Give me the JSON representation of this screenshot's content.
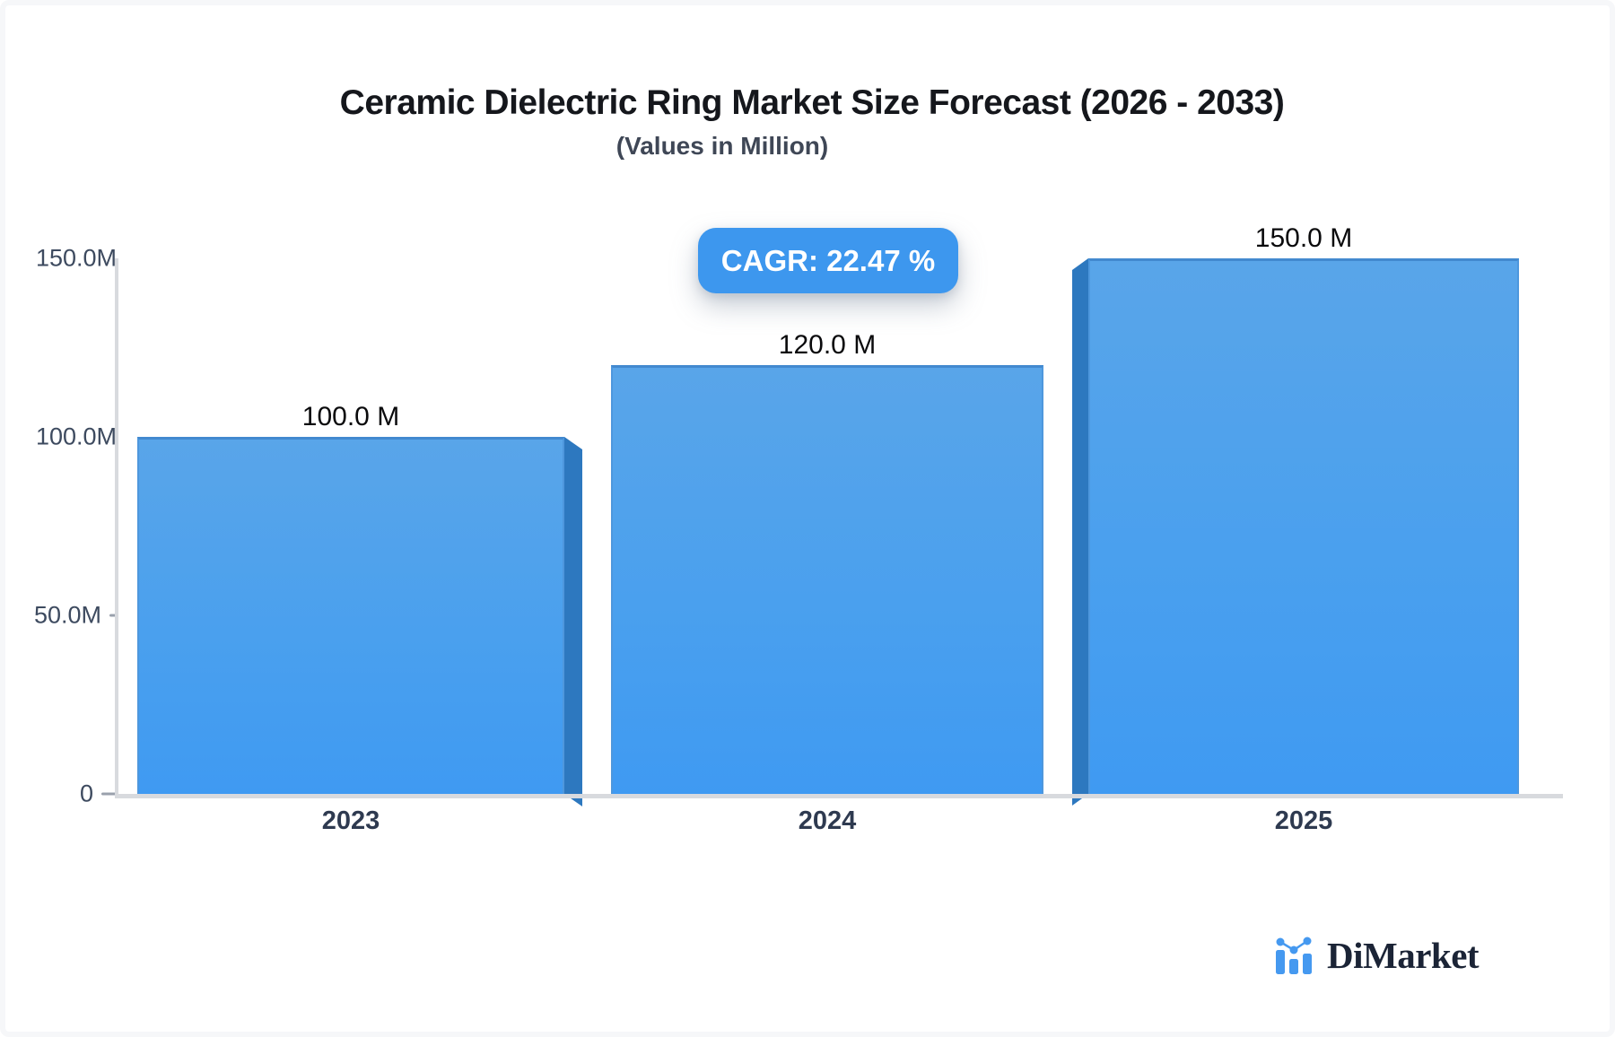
{
  "header": {
    "title": "Ceramic Dielectric Ring Market Size Forecast (2026 - 2033)",
    "subtitle": "(Values in Million)"
  },
  "badge": {
    "label": "CAGR: 22.47 %"
  },
  "chart_data": {
    "type": "bar",
    "title": "Ceramic Dielectric Ring Market Size Forecast (2026 - 2033)",
    "subtitle": "(Values in Million)",
    "unit": "Million",
    "categories": [
      "2023",
      "2024",
      "2025"
    ],
    "values": [
      100,
      120,
      150
    ],
    "value_labels": [
      "100.0 M",
      "120.0 M",
      "150.0 M"
    ],
    "cagr": "22.47 %",
    "xlabel": "",
    "ylabel": "",
    "ylim": [
      0,
      150
    ],
    "yticks": [
      {
        "value": 0,
        "label": "0"
      },
      {
        "value": 50,
        "label": "50.0M"
      },
      {
        "value": 100,
        "label": "100.0M"
      },
      {
        "value": 150,
        "label": "150.0M"
      }
    ],
    "grid": false,
    "legend": false,
    "bar_color_top": "#59a5e9",
    "bar_color_bottom": "#3f9af2",
    "bar_side_color": "#2d78bf"
  },
  "colors": {
    "badge_bg": "#3d97ee",
    "axis_line": "#d8dade",
    "title_text": "#15171c",
    "tick_text": "#3d4a5f",
    "logo_accent": "#4599f0",
    "logo_text": "#1b2436"
  },
  "logo": {
    "text": "DiMarket",
    "icon": "bar-chart-logo-icon"
  }
}
